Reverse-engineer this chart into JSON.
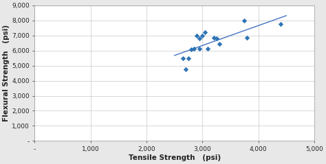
{
  "scatter_x": [
    2650,
    2700,
    2750,
    2800,
    2850,
    2900,
    2950,
    2950,
    3000,
    3050,
    3100,
    3200,
    3250,
    3300,
    3750,
    3800,
    4400
  ],
  "scatter_y": [
    5500,
    4750,
    5500,
    6050,
    6100,
    7000,
    6800,
    6100,
    7000,
    7200,
    6100,
    6850,
    6800,
    6450,
    8000,
    6850,
    7750
  ],
  "marker_color": "#2E75B6",
  "marker_size": 14,
  "line_color": "#4472C4",
  "line_width": 1.0,
  "xlabel": "Tensile Strength   (psi)",
  "ylabel": "Flexural Strength   (psi)",
  "xlim": [
    0,
    5000
  ],
  "ylim": [
    0,
    9000
  ],
  "xticks": [
    0,
    1000,
    2000,
    3000,
    4000,
    5000
  ],
  "yticks": [
    0,
    1000,
    2000,
    3000,
    4000,
    5000,
    6000,
    7000,
    8000,
    9000
  ],
  "xtick_labels": [
    "-",
    "1,000",
    "2,000",
    "3,000",
    "4,000",
    "5,000"
  ],
  "ytick_labels": [
    "-",
    "1,000",
    "2,000",
    "3,000",
    "4,000",
    "5,000",
    "6,000",
    "7,000",
    "8,000",
    "9,000"
  ],
  "fig_bg_color": "#E8E8E8",
  "plot_bg_color": "#FFFFFF",
  "grid_color": "#C8C8C8",
  "font_size_axis_label": 7.5,
  "font_size_tick": 6.5,
  "label_color": "#222222"
}
